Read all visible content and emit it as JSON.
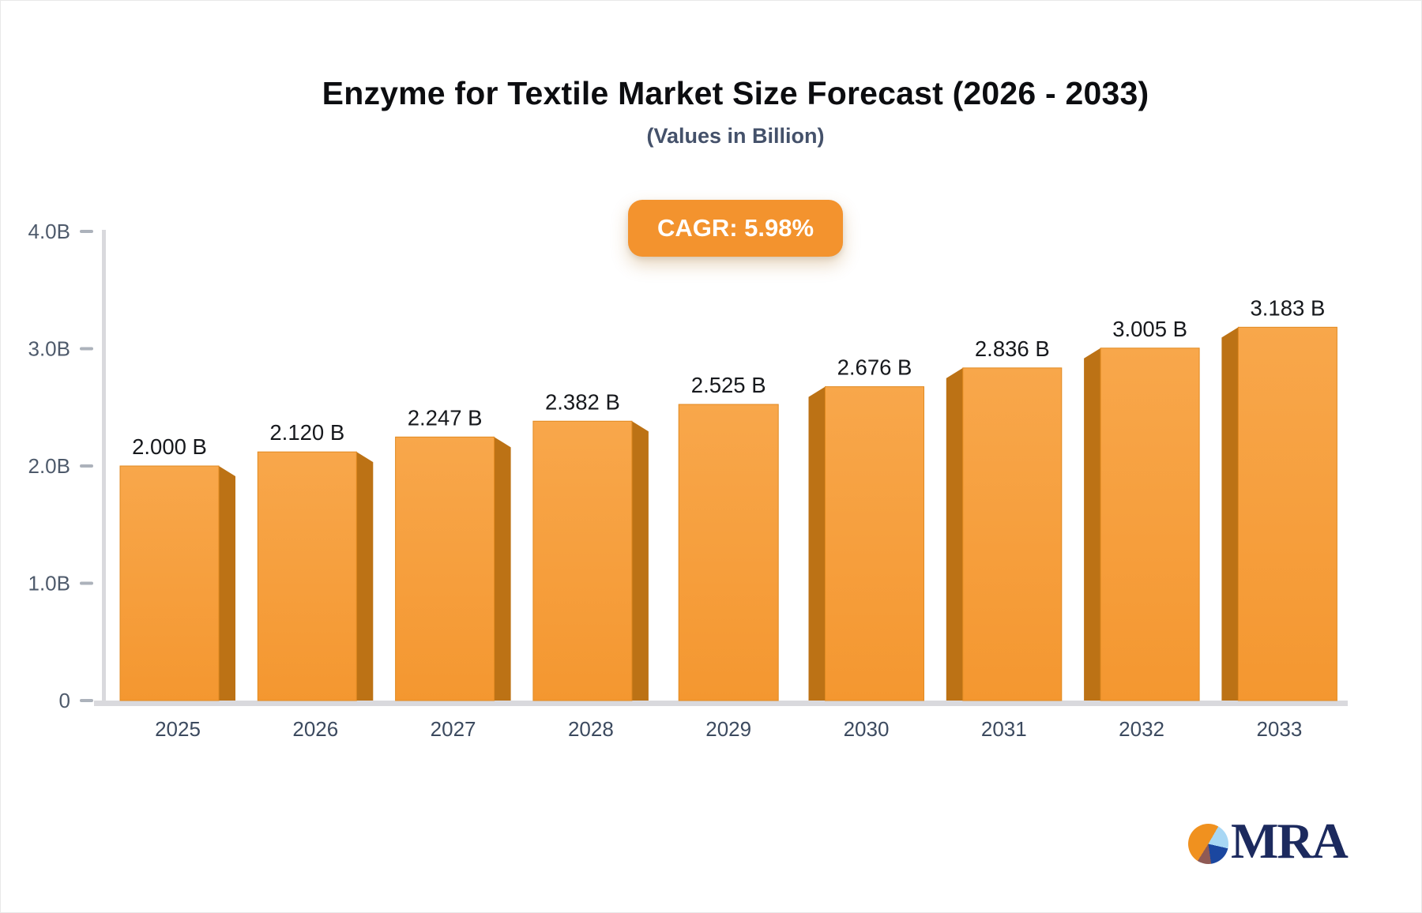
{
  "header": {
    "title": "Enzyme for Textile Market Size Forecast (2026 - 2033)",
    "subtitle": "(Values in Billion)",
    "cagr_label": "CAGR: 5.98%"
  },
  "chart_data": {
    "type": "bar",
    "title": "Enzyme for Textile Market Size Forecast (2026 - 2033)",
    "subtitle": "(Values in Billion)",
    "cagr_pct": 5.98,
    "categories": [
      "2025",
      "2026",
      "2027",
      "2028",
      "2029",
      "2030",
      "2031",
      "2032",
      "2033"
    ],
    "values": [
      2.0,
      2.12,
      2.247,
      2.382,
      2.525,
      2.676,
      2.836,
      3.005,
      3.183
    ],
    "value_labels": [
      "2.000 B",
      "2.120 B",
      "2.247 B",
      "2.382 B",
      "2.525 B",
      "2.676 B",
      "2.836 B",
      "3.005 B",
      "3.183 B"
    ],
    "xlabel": "",
    "ylabel": "",
    "ylim": [
      0,
      4.0
    ],
    "y_ticks": [
      {
        "value": 0,
        "label": "0"
      },
      {
        "value": 1,
        "label": "1.0B"
      },
      {
        "value": 2,
        "label": "2.0B"
      },
      {
        "value": 3,
        "label": "3.0B"
      },
      {
        "value": 4,
        "label": "4.0B"
      }
    ],
    "grid": false,
    "legend": false,
    "bar_style": "3d-bevel-orange"
  },
  "colors": {
    "bar_top": "#F8A74B",
    "bar_bottom": "#F49730",
    "bar_edge": "#E18A21",
    "bar_side": "#BC7215",
    "badge_bg": "#F3932E",
    "badge_text": "#FFFFFF",
    "axis": "#D9D9DD",
    "tick": "#ACB2BB",
    "tick_label": "#4E5A6B",
    "x_label": "#3C4A5F",
    "value_label": "#17191D",
    "title": "#0C0D10",
    "subtitle": "#44516A",
    "logo_navy": "#1C2A5E",
    "logo_orange": "#F0911F",
    "logo_lightblue": "#A8D7F4",
    "logo_blue": "#1B47A0",
    "logo_maroon": "#8F5A55"
  },
  "logo": {
    "text": "MRA"
  }
}
